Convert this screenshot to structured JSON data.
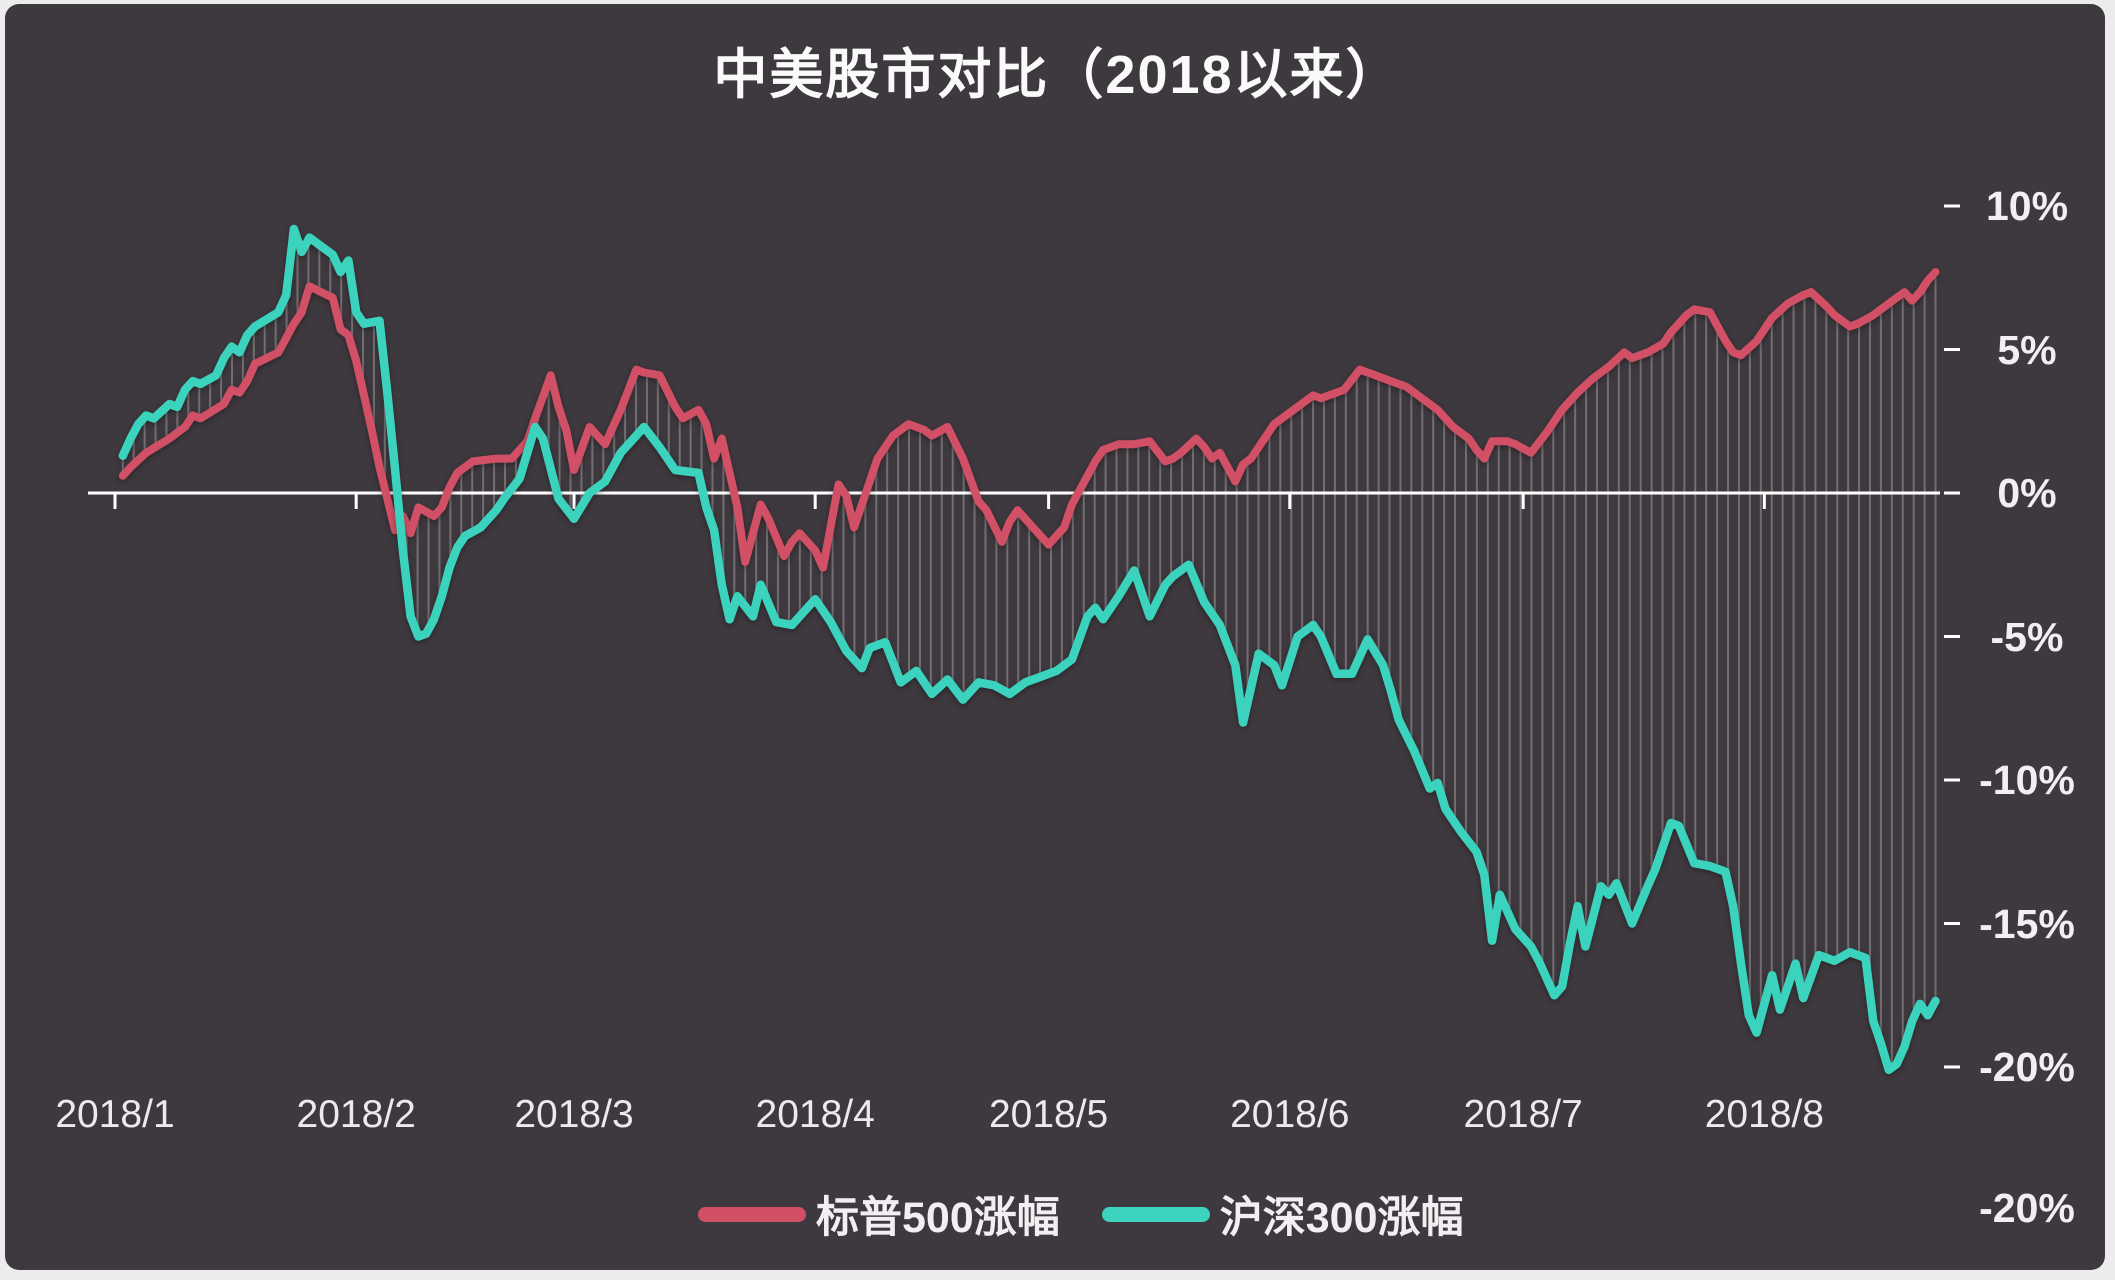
{
  "title": "中美股市对比（2018以来）",
  "colors": {
    "background_panel": "#3e393e",
    "frame": "#ececec",
    "axis_line": "#ffffff",
    "drop_line": "rgba(255,255,255,0.27)",
    "text": "#f1eff1",
    "sp500": "#d25066",
    "csi300": "#3bd3be"
  },
  "chart_data": {
    "type": "line",
    "title": "中美股市对比（2018以来）",
    "xlabel": "",
    "ylabel": "",
    "ylim": [
      -25,
      10
    ],
    "grid": "off",
    "legend_position": "bottom",
    "y_ticks": [
      {
        "label": "10%",
        "value": 10
      },
      {
        "label": "5%",
        "value": 5
      },
      {
        "label": "0%",
        "value": 0
      },
      {
        "label": "-5%",
        "value": -5
      },
      {
        "label": "-10%",
        "value": -10
      },
      {
        "label": "-15%",
        "value": -15
      },
      {
        "label": "-20%",
        "value": -20
      }
    ],
    "extra_bottom_label": "-20%",
    "x_ticks": [
      {
        "label": "2018/1",
        "day": 1
      },
      {
        "label": "2018/2",
        "day": 32
      },
      {
        "label": "2018/3",
        "day": 60
      },
      {
        "label": "2018/4",
        "day": 91
      },
      {
        "label": "2018/5",
        "day": 121
      },
      {
        "label": "2018/6",
        "day": 152
      },
      {
        "label": "2018/7",
        "day": 182
      },
      {
        "label": "2018/8",
        "day": 213
      }
    ],
    "x_unit": "day_of_year_2018",
    "series": [
      {
        "name": "标普500涨幅",
        "color": "#d25066",
        "points": [
          [
            2,
            0.6
          ],
          [
            3,
            0.9
          ],
          [
            5,
            1.4
          ],
          [
            8,
            1.9
          ],
          [
            9,
            2.1
          ],
          [
            10,
            2.3
          ],
          [
            11,
            2.7
          ],
          [
            12,
            2.6
          ],
          [
            15,
            3.1
          ],
          [
            16,
            3.6
          ],
          [
            17,
            3.5
          ],
          [
            18,
            3.9
          ],
          [
            19,
            4.5
          ],
          [
            22,
            4.9
          ],
          [
            23,
            5.4
          ],
          [
            24,
            5.9
          ],
          [
            25,
            6.3
          ],
          [
            26,
            7.2
          ],
          [
            29,
            6.8
          ],
          [
            30,
            5.7
          ],
          [
            31,
            5.5
          ],
          [
            32,
            4.6
          ],
          [
            33,
            3.4
          ],
          [
            34,
            2.2
          ],
          [
            35,
            0.9
          ],
          [
            36,
            -0.2
          ],
          [
            37,
            -1.3
          ],
          [
            38,
            -0.8
          ],
          [
            39,
            -1.4
          ],
          [
            40,
            -0.5
          ],
          [
            42,
            -0.8
          ],
          [
            43,
            -0.5
          ],
          [
            44,
            0.2
          ],
          [
            45,
            0.7
          ],
          [
            47,
            1.1
          ],
          [
            50,
            1.2
          ],
          [
            52,
            1.2
          ],
          [
            54,
            1.8
          ],
          [
            55,
            2.6
          ],
          [
            57,
            4.1
          ],
          [
            58,
            3.0
          ],
          [
            59,
            2.2
          ],
          [
            60,
            0.8
          ],
          [
            62,
            2.3
          ],
          [
            64,
            1.7
          ],
          [
            66,
            2.9
          ],
          [
            68,
            4.3
          ],
          [
            69,
            4.2
          ],
          [
            71,
            4.1
          ],
          [
            73,
            3.0
          ],
          [
            74,
            2.6
          ],
          [
            76,
            2.9
          ],
          [
            77,
            2.4
          ],
          [
            78,
            1.2
          ],
          [
            79,
            1.9
          ],
          [
            81,
            -0.5
          ],
          [
            82,
            -2.4
          ],
          [
            84,
            -0.4
          ],
          [
            85,
            -0.9
          ],
          [
            87,
            -2.2
          ],
          [
            88,
            -1.7
          ],
          [
            89,
            -1.4
          ],
          [
            91,
            -2.0
          ],
          [
            92,
            -2.6
          ],
          [
            94,
            0.3
          ],
          [
            95,
            -0.1
          ],
          [
            96,
            -1.2
          ],
          [
            98,
            0.4
          ],
          [
            99,
            1.2
          ],
          [
            101,
            2.0
          ],
          [
            103,
            2.4
          ],
          [
            105,
            2.2
          ],
          [
            106,
            2.0
          ],
          [
            108,
            2.3
          ],
          [
            110,
            1.2
          ],
          [
            112,
            -0.3
          ],
          [
            113,
            -0.6
          ],
          [
            115,
            -1.7
          ],
          [
            116,
            -1.0
          ],
          [
            117,
            -0.6
          ],
          [
            119,
            -1.2
          ],
          [
            121,
            -1.8
          ],
          [
            123,
            -1.2
          ],
          [
            124,
            -0.4
          ],
          [
            126,
            0.6
          ],
          [
            127,
            1.1
          ],
          [
            128,
            1.5
          ],
          [
            130,
            1.7
          ],
          [
            132,
            1.7
          ],
          [
            134,
            1.8
          ],
          [
            136,
            1.1
          ],
          [
            137,
            1.2
          ],
          [
            138,
            1.4
          ],
          [
            140,
            1.9
          ],
          [
            141,
            1.6
          ],
          [
            142,
            1.2
          ],
          [
            143,
            1.4
          ],
          [
            145,
            0.4
          ],
          [
            146,
            1.0
          ],
          [
            147,
            1.2
          ],
          [
            148,
            1.6
          ],
          [
            150,
            2.4
          ],
          [
            153,
            3.0
          ],
          [
            155,
            3.4
          ],
          [
            156,
            3.3
          ],
          [
            158,
            3.5
          ],
          [
            159,
            3.6
          ],
          [
            161,
            4.3
          ],
          [
            162,
            4.2
          ],
          [
            163,
            4.1
          ],
          [
            165,
            3.9
          ],
          [
            167,
            3.7
          ],
          [
            169,
            3.3
          ],
          [
            171,
            2.9
          ],
          [
            173,
            2.3
          ],
          [
            175,
            1.9
          ],
          [
            176,
            1.5
          ],
          [
            177,
            1.2
          ],
          [
            178,
            1.8
          ],
          [
            180,
            1.8
          ],
          [
            181,
            1.7
          ],
          [
            183,
            1.4
          ],
          [
            185,
            2.1
          ],
          [
            187,
            2.9
          ],
          [
            189,
            3.5
          ],
          [
            191,
            4.0
          ],
          [
            193,
            4.4
          ],
          [
            195,
            4.9
          ],
          [
            196,
            4.7
          ],
          [
            198,
            4.9
          ],
          [
            200,
            5.2
          ],
          [
            201,
            5.6
          ],
          [
            203,
            6.2
          ],
          [
            204,
            6.4
          ],
          [
            206,
            6.3
          ],
          [
            207,
            5.8
          ],
          [
            208,
            5.3
          ],
          [
            209,
            4.9
          ],
          [
            210,
            4.8
          ],
          [
            212,
            5.3
          ],
          [
            214,
            6.1
          ],
          [
            216,
            6.6
          ],
          [
            218,
            6.9
          ],
          [
            219,
            7.0
          ],
          [
            221,
            6.5
          ],
          [
            222,
            6.2
          ],
          [
            224,
            5.8
          ],
          [
            225,
            5.9
          ],
          [
            227,
            6.2
          ],
          [
            229,
            6.6
          ],
          [
            230,
            6.8
          ],
          [
            231,
            7.0
          ],
          [
            232,
            6.7
          ],
          [
            233,
            7.0
          ],
          [
            234,
            7.4
          ],
          [
            235,
            7.7
          ]
        ]
      },
      {
        "name": "沪深300涨幅",
        "color": "#3bd3be",
        "points": [
          [
            2,
            1.3
          ],
          [
            3,
            1.9
          ],
          [
            4,
            2.4
          ],
          [
            5,
            2.7
          ],
          [
            6,
            2.6
          ],
          [
            8,
            3.1
          ],
          [
            9,
            3.0
          ],
          [
            10,
            3.6
          ],
          [
            11,
            3.9
          ],
          [
            12,
            3.8
          ],
          [
            14,
            4.1
          ],
          [
            15,
            4.7
          ],
          [
            16,
            5.1
          ],
          [
            17,
            4.9
          ],
          [
            18,
            5.5
          ],
          [
            19,
            5.8
          ],
          [
            22,
            6.3
          ],
          [
            23,
            6.9
          ],
          [
            24,
            9.2
          ],
          [
            25,
            8.4
          ],
          [
            26,
            8.9
          ],
          [
            29,
            8.3
          ],
          [
            30,
            7.7
          ],
          [
            31,
            8.1
          ],
          [
            32,
            6.3
          ],
          [
            33,
            5.9
          ],
          [
            35,
            6.0
          ],
          [
            36,
            3.5
          ],
          [
            37,
            0.8
          ],
          [
            38,
            -2.0
          ],
          [
            39,
            -4.3
          ],
          [
            40,
            -5.0
          ],
          [
            41,
            -4.9
          ],
          [
            42,
            -4.4
          ],
          [
            43,
            -3.6
          ],
          [
            44,
            -2.6
          ],
          [
            45,
            -1.9
          ],
          [
            46,
            -1.5
          ],
          [
            48,
            -1.2
          ],
          [
            50,
            -0.6
          ],
          [
            51,
            -0.2
          ],
          [
            53,
            0.5
          ],
          [
            55,
            2.3
          ],
          [
            56,
            1.9
          ],
          [
            58,
            -0.2
          ],
          [
            60,
            -0.9
          ],
          [
            62,
            0.0
          ],
          [
            64,
            0.4
          ],
          [
            66,
            1.4
          ],
          [
            68,
            2.0
          ],
          [
            69,
            2.3
          ],
          [
            71,
            1.6
          ],
          [
            73,
            0.8
          ],
          [
            76,
            0.7
          ],
          [
            77,
            -0.5
          ],
          [
            78,
            -1.3
          ],
          [
            79,
            -3.2
          ],
          [
            80,
            -4.4
          ],
          [
            81,
            -3.6
          ],
          [
            83,
            -4.3
          ],
          [
            84,
            -3.2
          ],
          [
            86,
            -4.5
          ],
          [
            88,
            -4.6
          ],
          [
            91,
            -3.7
          ],
          [
            93,
            -4.5
          ],
          [
            95,
            -5.5
          ],
          [
            97,
            -6.1
          ],
          [
            98,
            -5.4
          ],
          [
            100,
            -5.2
          ],
          [
            102,
            -6.6
          ],
          [
            104,
            -6.2
          ],
          [
            106,
            -7.0
          ],
          [
            108,
            -6.5
          ],
          [
            110,
            -7.2
          ],
          [
            112,
            -6.6
          ],
          [
            114,
            -6.7
          ],
          [
            116,
            -7.0
          ],
          [
            118,
            -6.6
          ],
          [
            120,
            -6.4
          ],
          [
            122,
            -6.2
          ],
          [
            124,
            -5.8
          ],
          [
            126,
            -4.3
          ],
          [
            127,
            -4.0
          ],
          [
            128,
            -4.4
          ],
          [
            130,
            -3.6
          ],
          [
            132,
            -2.7
          ],
          [
            134,
            -4.3
          ],
          [
            136,
            -3.2
          ],
          [
            137,
            -2.9
          ],
          [
            139,
            -2.5
          ],
          [
            141,
            -3.8
          ],
          [
            143,
            -4.6
          ],
          [
            145,
            -6.0
          ],
          [
            146,
            -8.0
          ],
          [
            148,
            -5.6
          ],
          [
            150,
            -6.0
          ],
          [
            151,
            -6.7
          ],
          [
            153,
            -5.0
          ],
          [
            155,
            -4.6
          ],
          [
            156,
            -5.0
          ],
          [
            158,
            -6.3
          ],
          [
            160,
            -6.3
          ],
          [
            162,
            -5.1
          ],
          [
            164,
            -6.0
          ],
          [
            165,
            -6.9
          ],
          [
            166,
            -7.9
          ],
          [
            168,
            -9.0
          ],
          [
            170,
            -10.3
          ],
          [
            171,
            -10.1
          ],
          [
            172,
            -11.0
          ],
          [
            174,
            -11.8
          ],
          [
            176,
            -12.5
          ],
          [
            177,
            -13.3
          ],
          [
            178,
            -15.6
          ],
          [
            179,
            -14.0
          ],
          [
            180,
            -14.6
          ],
          [
            181,
            -15.2
          ],
          [
            183,
            -15.8
          ],
          [
            184,
            -16.3
          ],
          [
            186,
            -17.5
          ],
          [
            187,
            -17.2
          ],
          [
            188,
            -15.7
          ],
          [
            189,
            -14.4
          ],
          [
            190,
            -15.8
          ],
          [
            192,
            -13.7
          ],
          [
            193,
            -14.0
          ],
          [
            194,
            -13.6
          ],
          [
            196,
            -15.0
          ],
          [
            198,
            -13.7
          ],
          [
            199,
            -13.1
          ],
          [
            201,
            -11.5
          ],
          [
            202,
            -11.6
          ],
          [
            204,
            -12.9
          ],
          [
            206,
            -13.0
          ],
          [
            208,
            -13.2
          ],
          [
            209,
            -14.4
          ],
          [
            210,
            -16.4
          ],
          [
            211,
            -18.2
          ],
          [
            212,
            -18.8
          ],
          [
            214,
            -16.8
          ],
          [
            215,
            -18.0
          ],
          [
            217,
            -16.4
          ],
          [
            218,
            -17.6
          ],
          [
            220,
            -16.1
          ],
          [
            222,
            -16.3
          ],
          [
            224,
            -16.0
          ],
          [
            226,
            -16.2
          ],
          [
            227,
            -18.4
          ],
          [
            228,
            -19.2
          ],
          [
            229,
            -20.1
          ],
          [
            230,
            -19.9
          ],
          [
            231,
            -19.3
          ],
          [
            232,
            -18.4
          ],
          [
            233,
            -17.8
          ],
          [
            234,
            -18.2
          ],
          [
            235,
            -17.7
          ]
        ]
      }
    ]
  }
}
